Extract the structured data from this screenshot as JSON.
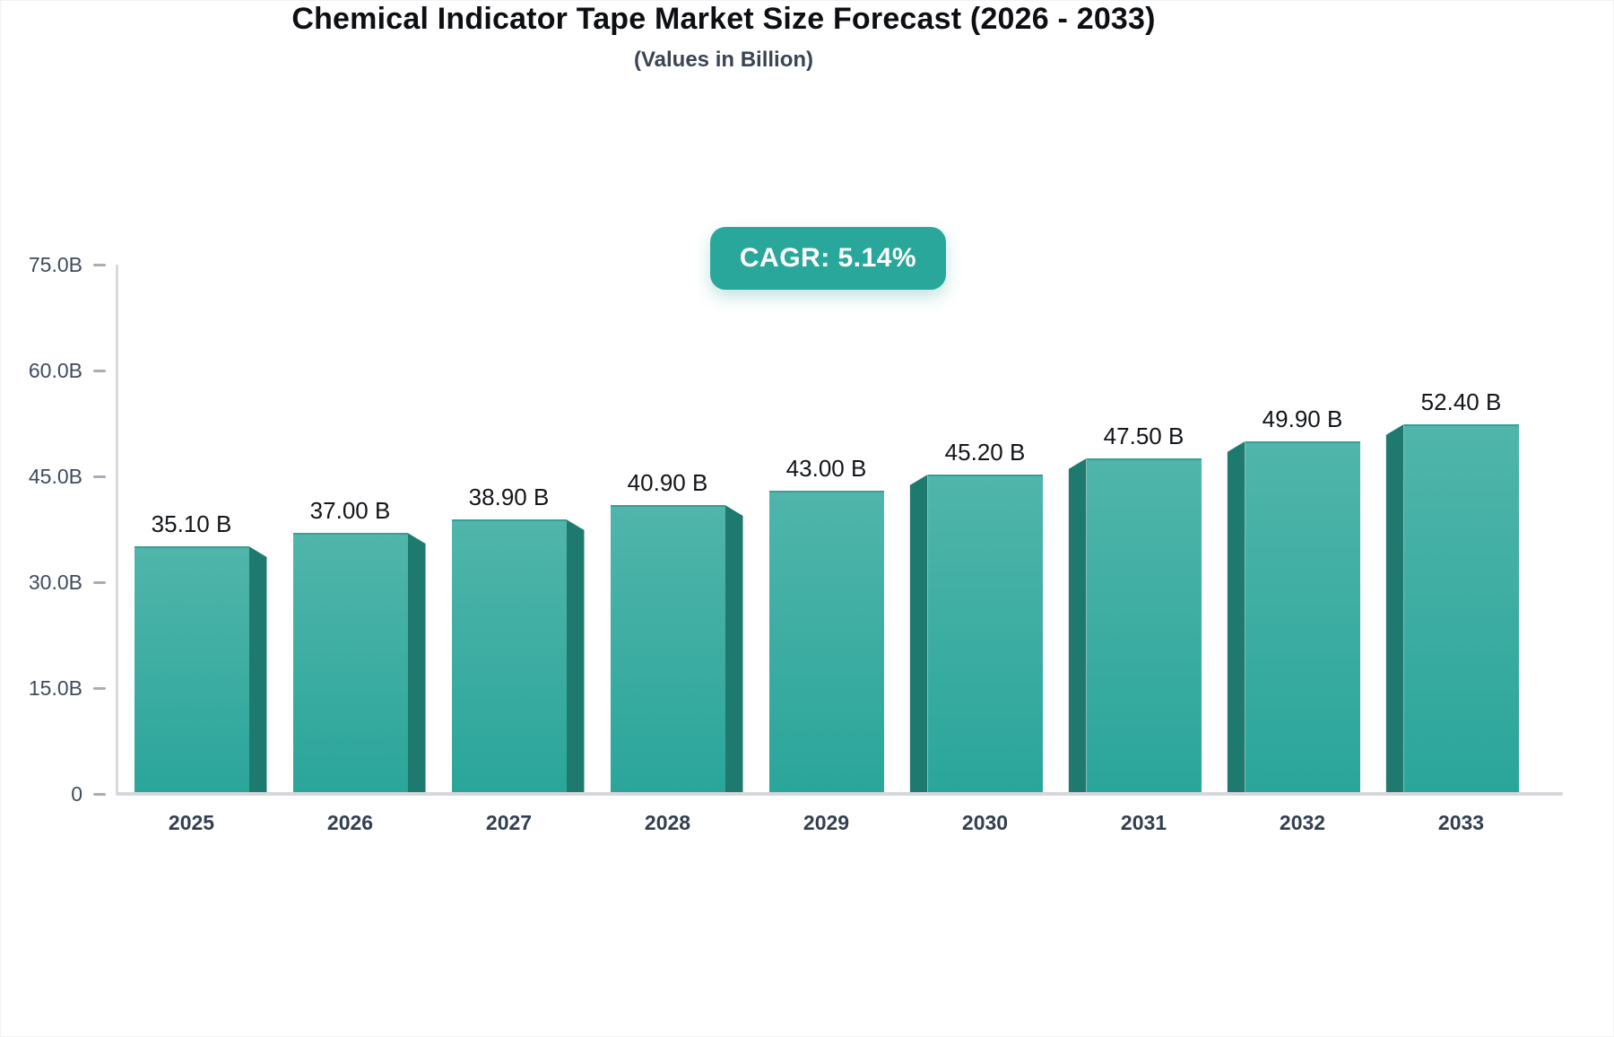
{
  "header": {
    "title": "Chemical Indicator Tape Market Size Forecast (2026 - 2033)",
    "subtitle": "(Values in Billion)"
  },
  "badge": {
    "label": "CAGR: 5.14%",
    "bg_color": "#2aa79b",
    "text_color": "#ffffff"
  },
  "chart_data": {
    "type": "bar",
    "title": "Chemical Indicator Tape Market Size Forecast (2026 - 2033)",
    "subtitle": "(Values in Billion)",
    "categories": [
      "2025",
      "2026",
      "2027",
      "2028",
      "2029",
      "2030",
      "2031",
      "2032",
      "2033"
    ],
    "values": [
      35.1,
      37.0,
      38.9,
      40.9,
      43.0,
      45.2,
      47.5,
      49.9,
      52.4
    ],
    "value_labels": [
      "35.10 B",
      "37.00 B",
      "38.90 B",
      "40.90 B",
      "43.00 B",
      "45.20 B",
      "47.50 B",
      "49.90 B",
      "52.40 B"
    ],
    "xlabel": "",
    "ylabel": "",
    "ylim": [
      0,
      75
    ],
    "yticks": [
      {
        "label": "75.0B",
        "value": 75
      },
      {
        "label": "60.0B",
        "value": 60
      },
      {
        "label": "45.0B",
        "value": 45
      },
      {
        "label": "30.0B",
        "value": 30
      },
      {
        "label": "15.0B",
        "value": 15
      },
      {
        "label": "0",
        "value": 0
      }
    ],
    "grid": false,
    "legend": null,
    "style_3d": true,
    "colors": {
      "bar_face_top": "#50b5aa",
      "bar_face_bottom": "#2aa59a",
      "bar_face_edge": "#37a094",
      "bar_side": "#1e796f",
      "axis_line": "#d9dade",
      "baseline": "#d4d7db",
      "tick_dash": "#a8adb6",
      "ytick_text": "#3f4b5e",
      "xtick_text": "#333f51",
      "value_text": "#121519"
    }
  }
}
